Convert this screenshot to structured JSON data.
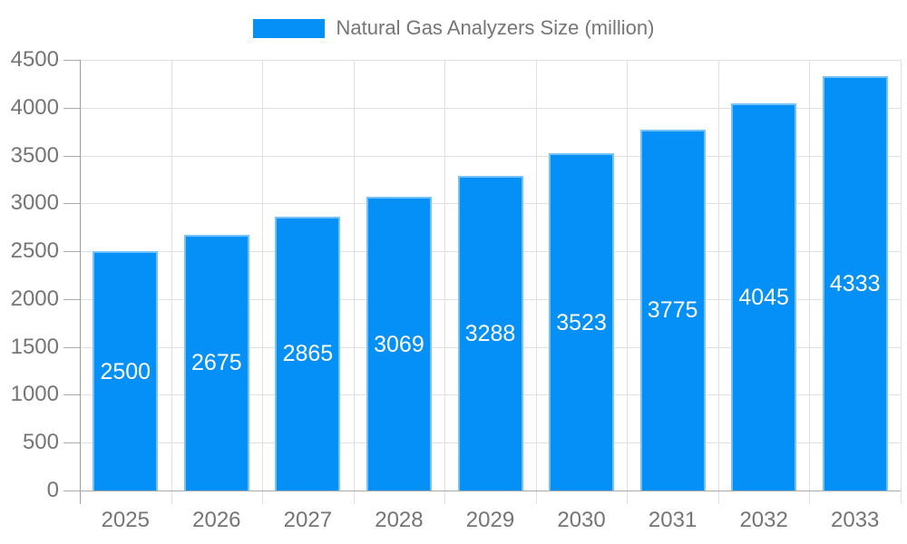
{
  "legend": {
    "position": "top"
  },
  "colors": {
    "bar_fill": "#0590f8",
    "bar_border_highlight": "#a9d4f9",
    "grid": "#e0e0e0",
    "axis_line": "#9e9e9e",
    "baseline": "#ababab",
    "label_text": "#757575",
    "bar_label_text": "#ffffff",
    "background": "#ffffff"
  },
  "chart_data": {
    "type": "bar",
    "title": "",
    "series_name": "Natural Gas Analyzers Size (million)",
    "categories": [
      "2025",
      "2026",
      "2027",
      "2028",
      "2029",
      "2030",
      "2031",
      "2032",
      "2033"
    ],
    "values": [
      2500,
      2675,
      2865,
      3069,
      3288,
      3523,
      3775,
      4045,
      4333
    ],
    "bar_labels": [
      "2500",
      "2675",
      "2865",
      "3069",
      "3288",
      "3523",
      "3775",
      "4045",
      "4333"
    ],
    "xlabel": "",
    "ylabel": "",
    "ylim": [
      0,
      4500
    ],
    "yticks": [
      0,
      500,
      1000,
      1500,
      2000,
      2500,
      3000,
      3500,
      4000,
      4500
    ],
    "grid": true,
    "legend_position": "top",
    "bar_label_position": "inside-center"
  }
}
